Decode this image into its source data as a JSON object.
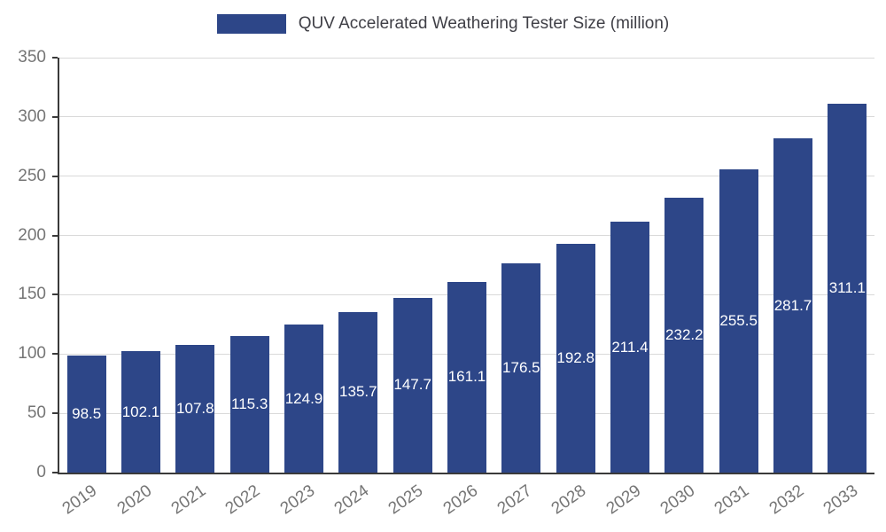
{
  "chart": {
    "title": "QUV Accelerated Weathering Tester Size (million)"
  },
  "chart_data": {
    "type": "bar",
    "title": "QUV Accelerated Weathering Tester Size (million)",
    "categories": [
      "2019",
      "2020",
      "2021",
      "2022",
      "2023",
      "2024",
      "2025",
      "2026",
      "2027",
      "2028",
      "2029",
      "2030",
      "2031",
      "2032",
      "2033"
    ],
    "values": [
      98.5,
      102.1,
      107.8,
      115.3,
      124.9,
      135.7,
      147.7,
      161.1,
      176.5,
      192.8,
      211.4,
      232.2,
      255.5,
      281.7,
      311.1
    ],
    "value_labels": [
      "98.5",
      "102.1",
      "107.8",
      "115.3",
      "124.9",
      "135.7",
      "147.7",
      "161.1",
      "176.5",
      "192.8",
      "211.4",
      "232.2",
      "255.5",
      "281.7",
      "311.1"
    ],
    "xlabel": "",
    "ylabel": "",
    "ylim": [
      0,
      350
    ],
    "ytick_step": 50,
    "yticks": [
      0,
      50,
      100,
      150,
      200,
      250,
      300,
      350
    ],
    "grid": true,
    "legend_position": "top-center",
    "bar_color": "#2d4688",
    "bar_label_color": "#ffffff",
    "grid_color": "#d9d9d9",
    "axis_color": "#3a3a3a",
    "tick_label_color": "#757575",
    "title_color": "#3f3f46"
  }
}
